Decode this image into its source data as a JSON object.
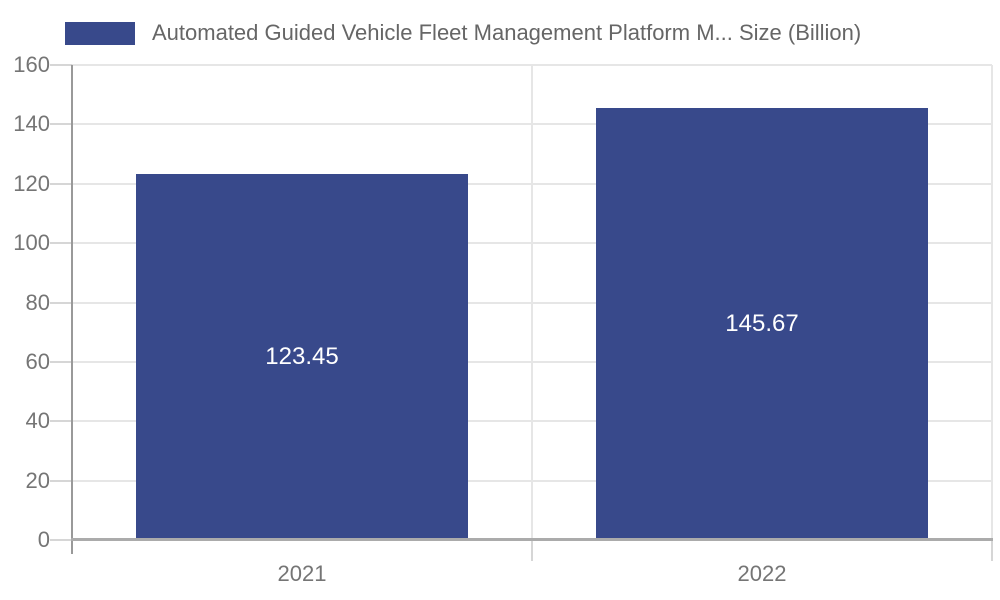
{
  "legend": {
    "label": "Automated Guided Vehicle Fleet Management Platform M... Size (Billion)"
  },
  "colors": {
    "background": "#FFFFFF",
    "bar": "#38498B",
    "grid": "#E6E6E6",
    "tick": "#D6D6D6",
    "axis_y": "#999999",
    "axis_x": "#ABABAB",
    "axis_label": "#757575",
    "legend_text": "#666666",
    "value_label": "#FFFFFF"
  },
  "chart_data": {
    "type": "bar",
    "title": "",
    "xlabel": "",
    "ylabel": "",
    "categories": [
      "2021",
      "2022"
    ],
    "series": [
      {
        "name": "Automated Guided Vehicle Fleet Management Platform M... Size (Billion)",
        "values": [
          123.45,
          145.67
        ],
        "labels": [
          "123.45",
          "145.67"
        ]
      }
    ],
    "ylim": [
      0,
      160
    ],
    "yticks": [
      0,
      20,
      40,
      60,
      80,
      100,
      120,
      140,
      160
    ],
    "grid": true,
    "legend_position": "top-left",
    "bar_width_fraction": 0.72
  }
}
